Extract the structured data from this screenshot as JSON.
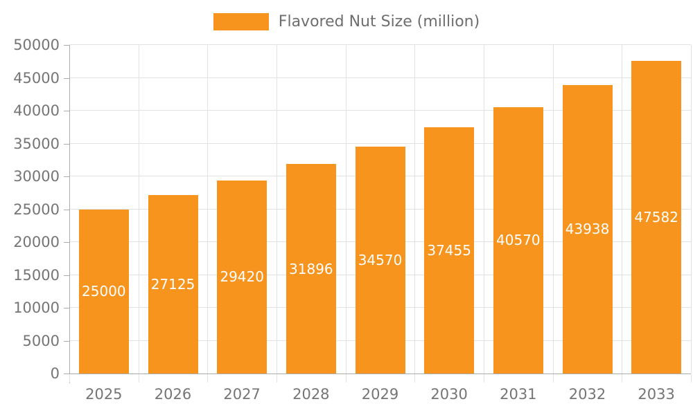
{
  "legend": {
    "label": "Flavored Nut Size (million)"
  },
  "chart_data": {
    "type": "bar",
    "title": "",
    "categories": [
      "2025",
      "2026",
      "2027",
      "2028",
      "2029",
      "2030",
      "2031",
      "2032",
      "2033"
    ],
    "series": [
      {
        "name": "Flavored Nut Size (million)",
        "values": [
          25000,
          27125,
          29420,
          31896,
          34570,
          37455,
          40570,
          43938,
          47582
        ]
      }
    ],
    "value_labels": [
      "25000",
      "27125",
      "29420",
      "31896",
      "34570",
      "37455",
      "40570",
      "43938",
      "47582"
    ],
    "xlabel": "",
    "ylabel": "",
    "ylim": [
      0,
      50000
    ],
    "ytick_step": 5000,
    "ytick_labels": [
      "0",
      "5000",
      "10000",
      "15000",
      "20000",
      "25000",
      "30000",
      "35000",
      "40000",
      "45000",
      "50000"
    ],
    "grid": true,
    "legend_position": "top",
    "colors": {
      "bar": "#F7941E",
      "value_label": "#FFFFFF",
      "axis_text": "#757575",
      "legend_text": "#6E6E6E",
      "gridline": "#E2E2E2",
      "axis_line": "#ABABAB"
    }
  }
}
